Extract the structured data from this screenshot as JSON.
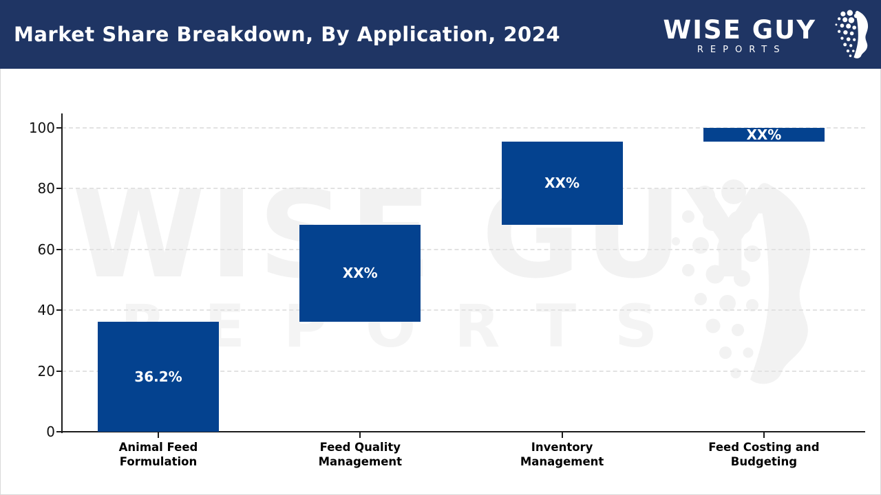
{
  "header": {
    "title": "Market Share Breakdown, By Application, 2024",
    "logo": {
      "line1": "WISE GUY",
      "line2": "REPORTS"
    }
  },
  "watermark": {
    "line1": "WISE GUY",
    "line2": "REPORTS"
  },
  "colors": {
    "header_bg": "#1f3564",
    "bar_blue": "#04428f",
    "gridline": "#e2e2e2",
    "watermark_gray": "#f2f2f2"
  },
  "chart_data": {
    "type": "bar",
    "subtype": "floating-segment-waterfall",
    "title": "Market Share Breakdown, By Application, 2024",
    "xlabel": "",
    "ylabel": "",
    "ylim": [
      0,
      105
    ],
    "yticks": [
      0,
      20,
      40,
      60,
      80,
      100
    ],
    "grid": "horizontal-dashed",
    "legend": "none",
    "bar_color": "#04428f",
    "categories": [
      "Animal Feed\nFormulation",
      "Feed Quality\nManagement",
      "Inventory\nManagement",
      "Feed Costing and\nBudgeting"
    ],
    "segments": [
      {
        "category": "Animal Feed Formulation",
        "start": 0,
        "end": 36.2,
        "label": "36.2%"
      },
      {
        "category": "Feed Quality Management",
        "start": 36.2,
        "end": 68.1,
        "label": "XX%"
      },
      {
        "category": "Inventory Management",
        "start": 68.1,
        "end": 95.5,
        "label": "XX%"
      },
      {
        "category": "Feed Costing and Budgeting",
        "start": 95.5,
        "end": 100,
        "label": "XX%"
      }
    ]
  }
}
